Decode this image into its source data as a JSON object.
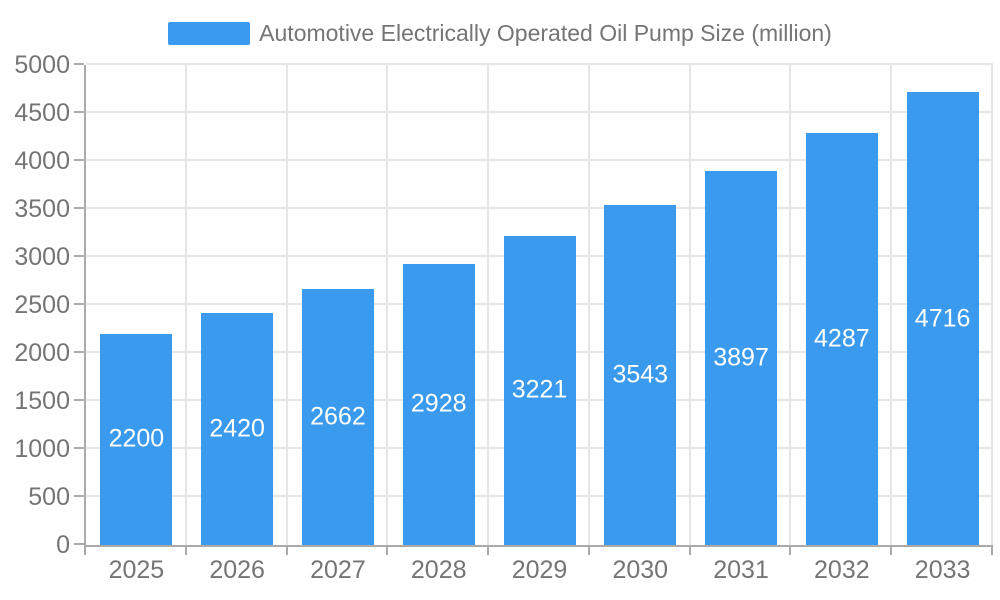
{
  "legend": {
    "label": "Automotive Electrically Operated Oil Pump Size (million)"
  },
  "chart_data": {
    "type": "bar",
    "title": "Automotive Electrically Operated Oil Pump Size (million)",
    "series_name": "Automotive Electrically Operated Oil Pump Size (million)",
    "categories": [
      "2025",
      "2026",
      "2027",
      "2028",
      "2029",
      "2030",
      "2031",
      "2032",
      "2033"
    ],
    "values": [
      2200,
      2420,
      2662,
      2928,
      3221,
      3543,
      3897,
      4287,
      4716
    ],
    "xlabel": "",
    "ylabel": "",
    "ylim": [
      0,
      5000
    ],
    "y_ticks": [
      0,
      500,
      1000,
      1500,
      2000,
      2500,
      3000,
      3500,
      4000,
      4500,
      5000
    ],
    "grid": "horizontal-and-vertical",
    "legend_position": "top-center",
    "value_label_position": "inside-center"
  },
  "colors": {
    "bar": "#3A9AEE",
    "axis": "#AAAAAA",
    "gridline": "#E6E6E6",
    "tick_label": "#757575",
    "value_label": "#FFFFFF",
    "background": "#FFFFFF"
  }
}
